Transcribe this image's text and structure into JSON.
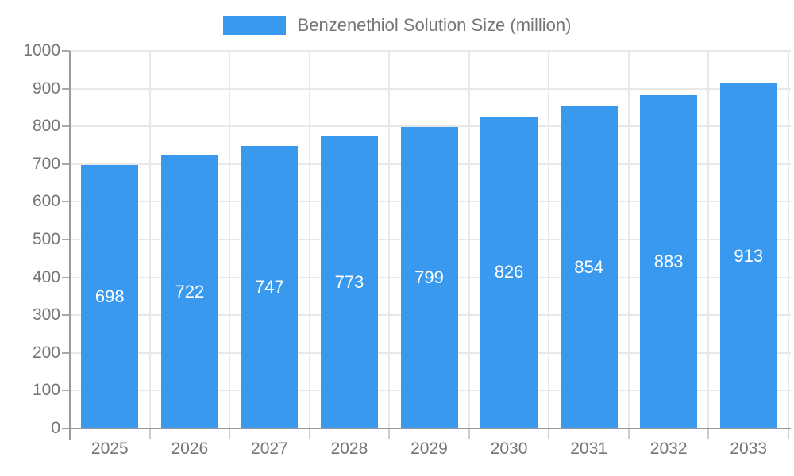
{
  "legend": {
    "label": "Benzenethiol Solution Size (million)"
  },
  "colors": {
    "background": "#FFFFFF",
    "bar": "#3899EE",
    "grid": "#E8E8E8",
    "axis": "#9A9A9A",
    "y_tick": "#A8A8A8",
    "x_tick": "#CCCCCC",
    "text": "#757575",
    "bar_label": "#FFFFFF"
  },
  "chart_data": {
    "type": "bar",
    "title": "Benzenethiol Solution Size (million)",
    "categories": [
      "2025",
      "2026",
      "2027",
      "2028",
      "2029",
      "2030",
      "2031",
      "2032",
      "2033"
    ],
    "values": [
      698,
      722,
      747,
      773,
      799,
      826,
      854,
      883,
      913
    ],
    "series_name": "Benzenethiol Solution Size (million)",
    "xlabel": "",
    "ylabel": "",
    "ylim": [
      0,
      1000
    ],
    "yticks": [
      0,
      100,
      200,
      300,
      400,
      500,
      600,
      700,
      800,
      900,
      1000
    ],
    "grid": true,
    "legend_position": "top-center",
    "value_labels": "inside-center"
  }
}
